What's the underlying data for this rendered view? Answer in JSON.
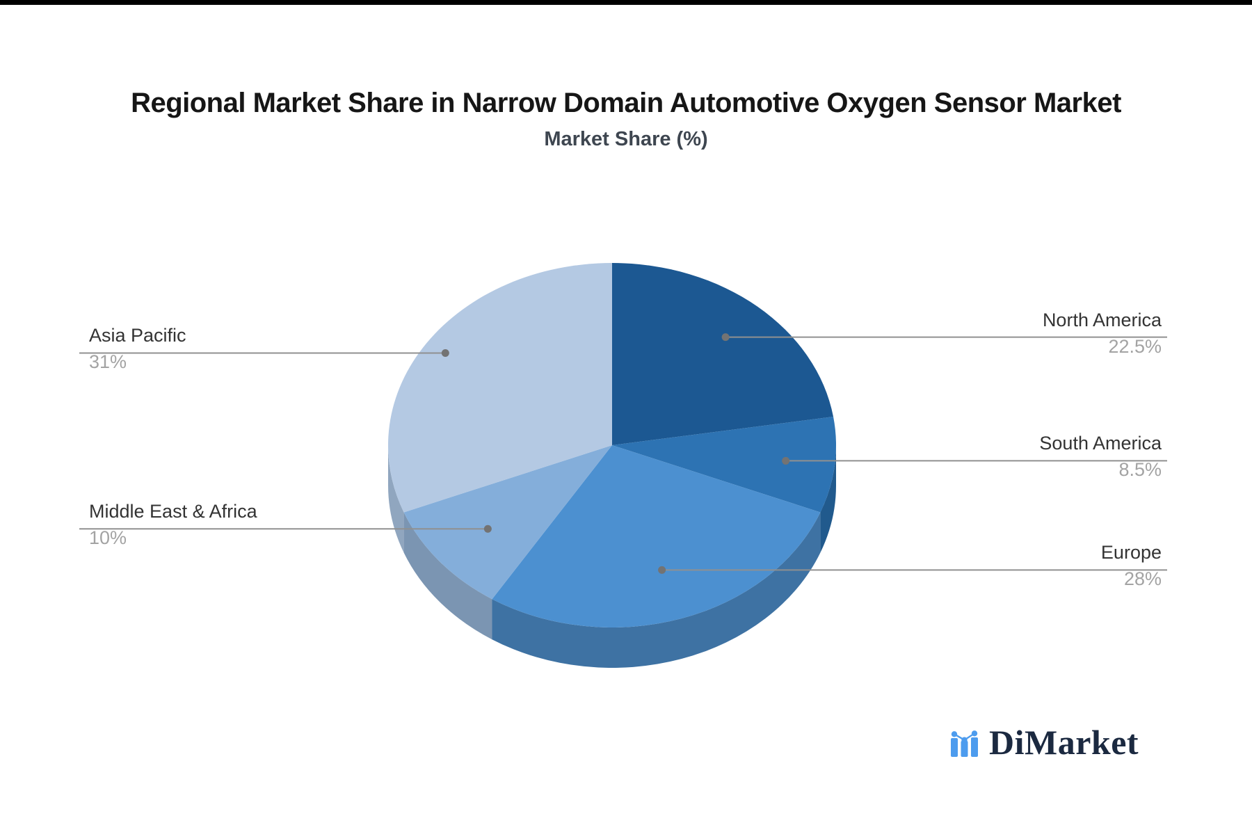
{
  "window": {
    "top_edge_color": "#000000"
  },
  "chart_data": {
    "type": "pie",
    "style": "3d",
    "title": "Regional Market Share in Narrow Domain Automotive Oxygen Sensor Market",
    "subtitle": "Market Share (%)",
    "unit": "%",
    "legend": "none",
    "labels_layout": "callouts-left-right",
    "start_angle_deg": 0,
    "clockwise": true,
    "segments": [
      {
        "label": "North America",
        "value": 22.5,
        "display": "22.5%",
        "color": "#1c5892",
        "side_color": "#154878",
        "label_side": "right"
      },
      {
        "label": "South America",
        "value": 8.5,
        "display": "8.5%",
        "color": "#2d73b3",
        "side_color": "#215a8d",
        "label_side": "right"
      },
      {
        "label": "Europe",
        "value": 28,
        "display": "28%",
        "color": "#4c90d0",
        "side_color": "#3e72a3",
        "label_side": "right"
      },
      {
        "label": "Middle East & Africa",
        "value": 10,
        "display": "10%",
        "color": "#84aeda",
        "side_color": "#7b95b2",
        "label_side": "left"
      },
      {
        "label": "Asia Pacific",
        "value": 31,
        "display": "31%",
        "color": "#b4c9e3",
        "side_color": "#90a6bf",
        "label_side": "left"
      }
    ]
  },
  "logo": {
    "text": "DiMarket",
    "icon": "bar-line-chart-icon",
    "icon_color": "#4d9cee",
    "text_color": "#1b2940"
  },
  "colors": {
    "background": "#ffffff",
    "title_text": "#161616",
    "subtitle_text": "#3e4650",
    "label_text": "#333333",
    "value_text": "#a3a3a3",
    "leader_line": "#909090",
    "leader_dot": "#737373"
  }
}
